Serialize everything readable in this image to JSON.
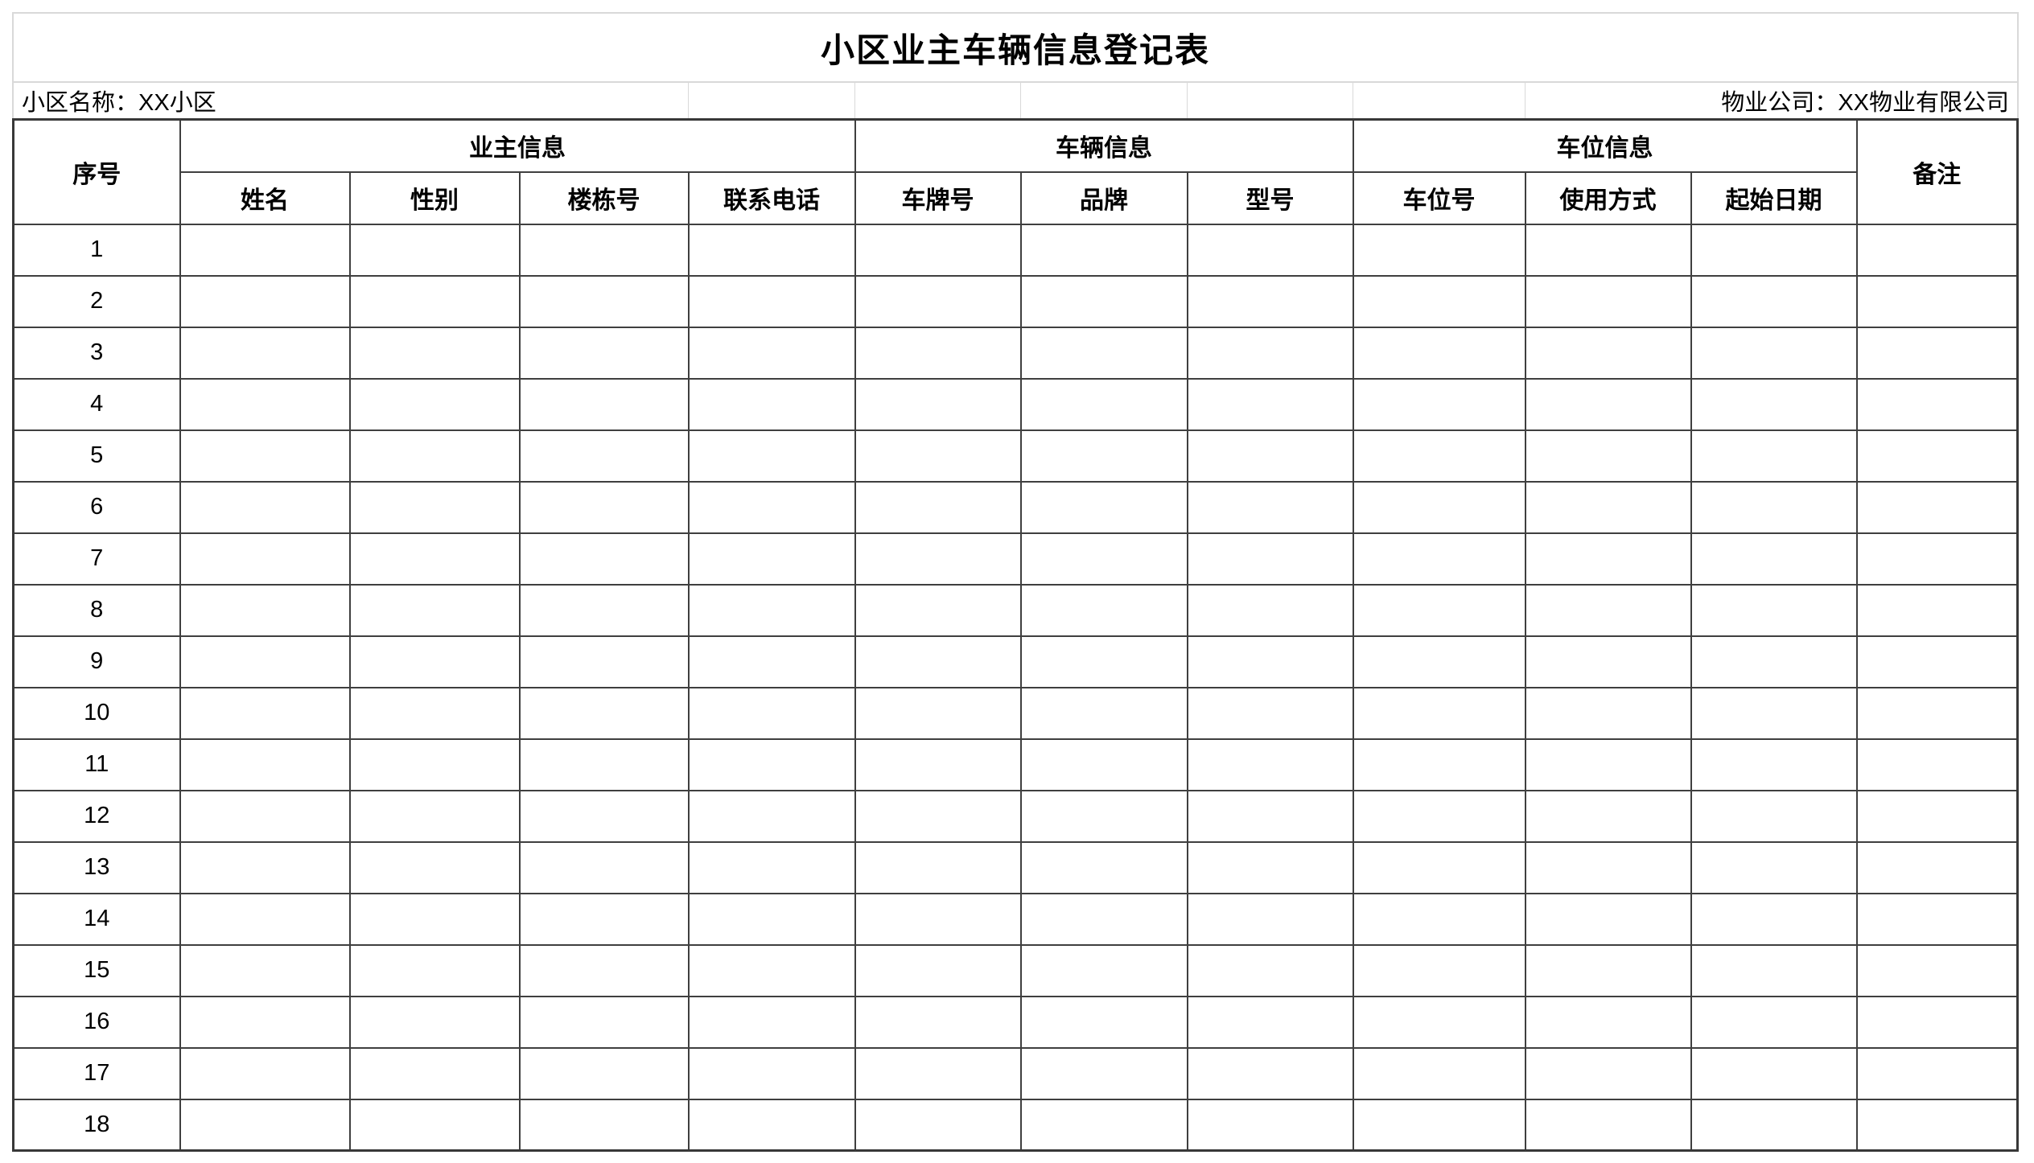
{
  "page": {
    "title": "小区业主车辆信息登记表"
  },
  "info_bar": {
    "community": {
      "label": "小区名称：",
      "value": "XX小区"
    },
    "property_company": {
      "label": "物业公司：",
      "value": "XX物业有限公司"
    }
  },
  "table": {
    "seq_header": "序号",
    "remark_header": "备注",
    "groups": [
      {
        "label": "业主信息",
        "columns": [
          "姓名",
          "性别",
          "楼栋号",
          "联系电话"
        ]
      },
      {
        "label": "车辆信息",
        "columns": [
          "车牌号",
          "品牌",
          "型号"
        ]
      },
      {
        "label": "车位信息",
        "columns": [
          "车位号",
          "使用方式",
          "起始日期"
        ]
      }
    ],
    "row_numbers": [
      "1",
      "2",
      "3",
      "4",
      "5",
      "6",
      "7",
      "8",
      "9",
      "10",
      "11",
      "12",
      "13",
      "14",
      "15",
      "16",
      "17",
      "18"
    ],
    "cell_value_empty": ""
  },
  "colors": {
    "border_dark": "#3f3f3f",
    "border_light": "#d9d9d9",
    "text": "#000000",
    "background": "#ffffff"
  }
}
